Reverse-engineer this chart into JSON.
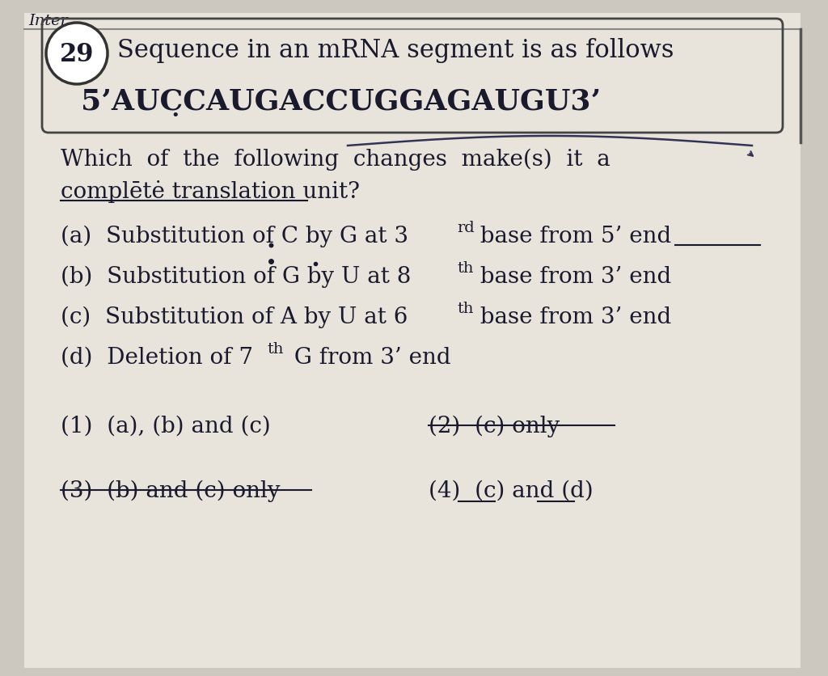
{
  "bg_color": "#ccc8c0",
  "text_color": "#1a1a2e",
  "question_number": "29",
  "title_line1": "Sequence in an mRNA segment is as follows",
  "sequence_line": "5’AUC̣CAUGACCUGGAGAUGU3’",
  "question_line1": "Which  of  the  following  changes  make(s)  it  a",
  "question_line2": "complētė translation unit?",
  "option_a_full": "(a)  Substitution of C by G at 3ʳᵈ base from 5’ end",
  "option_b_full": "(b)  Substitution of G by U at 8ᵗʰ base from 3’ end",
  "option_c_full": "(c)  Substitution of A by U at 6ᵗʰ base from 3’ end",
  "option_d_full": "(d)  Deletion of 7ᵗʰ G from 3’ end",
  "ans1": "(1)  (a), (b) and (c)",
  "ans2": "(2)  (c) only",
  "ans3": "(3)  (b) and (c) only",
  "ans4": "(4)  (c) and (d)",
  "font_size_title": 22,
  "font_size_seq": 26,
  "font_size_question": 20,
  "font_size_option": 20,
  "font_size_answer": 20
}
